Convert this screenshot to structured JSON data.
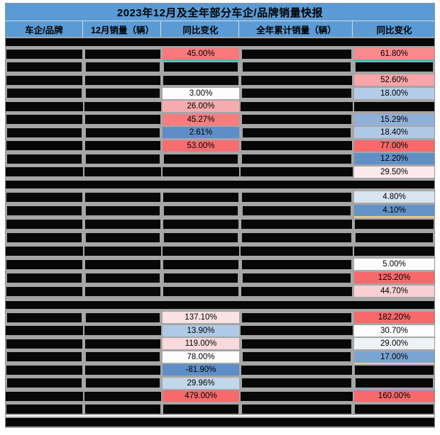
{
  "title": "2023年12月及全年部分车企/品牌销量快报",
  "columns": [
    "车企/品牌",
    "12月销量（辆）",
    "同比变化",
    "全年累计销量（辆）",
    "同比变化"
  ],
  "theme": {
    "header_bg": "#5B9BD5",
    "grid_line": "#A6A6A6",
    "redaction": "#060606",
    "accent_teal": "#3FBDB5",
    "accent_tan": "#EDCB93",
    "accent_cyan": "#3EC9DB"
  },
  "sections": [
    {
      "header_redacted": true,
      "rows": [
        {
          "dec_yoy": {
            "v": "45.00%",
            "bg": "#F7797B",
            "line": "#3FBDB5"
          },
          "year_yoy": {
            "v": "61.80%",
            "bg": "#F98A8C",
            "line": "#3FBDB5"
          }
        },
        {
          "dec_yoy": null,
          "year_yoy": null
        },
        {
          "dec_yoy": null,
          "year_yoy": {
            "v": "52.60%",
            "bg": "#F7A5A8"
          }
        },
        {
          "dec_yoy": {
            "v": "3.00%",
            "bg": "#FDFDFF"
          },
          "year_yoy": {
            "v": "18.00%",
            "bg": "#B4CCE7"
          }
        },
        {
          "dec_yoy": {
            "v": "26.00%",
            "bg": "#F5ACAF"
          },
          "year_yoy": null
        },
        {
          "dec_yoy": {
            "v": "45.27%",
            "bg": "#F77D7F"
          },
          "year_yoy": {
            "v": "15.29%",
            "bg": "#8FB0DA"
          }
        },
        {
          "dec_yoy": {
            "v": "2.61%",
            "bg": "#5E8EC7"
          },
          "year_yoy": {
            "v": "18.40%",
            "bg": "#AFC9E5"
          }
        },
        {
          "dec_yoy": {
            "v": "53.00%",
            "bg": "#F76E70"
          },
          "year_yoy": {
            "v": "77.00%",
            "bg": "#F7696B"
          }
        },
        {
          "dec_yoy": null,
          "year_yoy": {
            "v": "12.20%",
            "bg": "#5F90C8"
          }
        },
        {
          "dec_yoy": null,
          "year_yoy": {
            "v": "29.50%",
            "bg": "#FBE9EB"
          }
        }
      ]
    },
    {
      "header_redacted": true,
      "rows": [
        {
          "dec_yoy": null,
          "year_yoy": {
            "v": "4.80%",
            "bg": "#D9E6F2"
          }
        },
        {
          "dec_yoy": null,
          "year_yoy": {
            "v": "4.10%",
            "bg": "#6493C8",
            "line": "#EDCB93"
          }
        },
        {
          "dec_yoy": null,
          "year_yoy": null
        },
        {
          "dec_yoy": null,
          "year_yoy": null
        },
        {
          "dec_yoy": null,
          "year_yoy": null
        },
        {
          "dec_yoy": null,
          "year_yoy": {
            "v": "5.00%",
            "bg": "#FDFDFF"
          }
        },
        {
          "dec_yoy": null,
          "year_yoy": {
            "v": "125.20%",
            "bg": "#F7696B"
          }
        },
        {
          "dec_yoy": null,
          "year_yoy": {
            "v": "44.70%",
            "bg": "#F8CFD2"
          }
        }
      ]
    },
    {
      "header_redacted": true,
      "rows": [
        {
          "dec_yoy": {
            "v": "137.10%",
            "bg": "#FAE1E3"
          },
          "year_yoy": {
            "v": "182.20%",
            "bg": "#F7696B"
          }
        },
        {
          "dec_yoy": {
            "v": "13.90%",
            "bg": "#AECAE6"
          },
          "year_yoy": {
            "v": "30.70%",
            "bg": "#FDFDFF"
          }
        },
        {
          "dec_yoy": {
            "v": "119.00%",
            "bg": "#F9D9DC"
          },
          "year_yoy": {
            "v": "29.00%",
            "bg": "#EEF3FA"
          }
        },
        {
          "dec_yoy": {
            "v": "78.00%",
            "bg": "#FDFDFF"
          },
          "year_yoy": {
            "v": "17.00%",
            "bg": "#7AA4D2",
            "line": "#EDCB93"
          }
        },
        {
          "dec_yoy": {
            "v": "-81.90%",
            "bg": "#5E8EC7"
          },
          "year_yoy": null
        },
        {
          "dec_yoy": {
            "v": "29.96%",
            "bg": "#C3D7EB"
          },
          "year_yoy": {
            "line": "#3EC9DB"
          }
        },
        {
          "dec_yoy": {
            "v": "479.00%",
            "bg": "#F7696B"
          },
          "year_yoy": {
            "v": "160.00%",
            "bg": "#F7696B"
          }
        },
        {
          "dec_yoy": null,
          "year_yoy": null
        }
      ]
    }
  ],
  "footer_redacted": true
}
